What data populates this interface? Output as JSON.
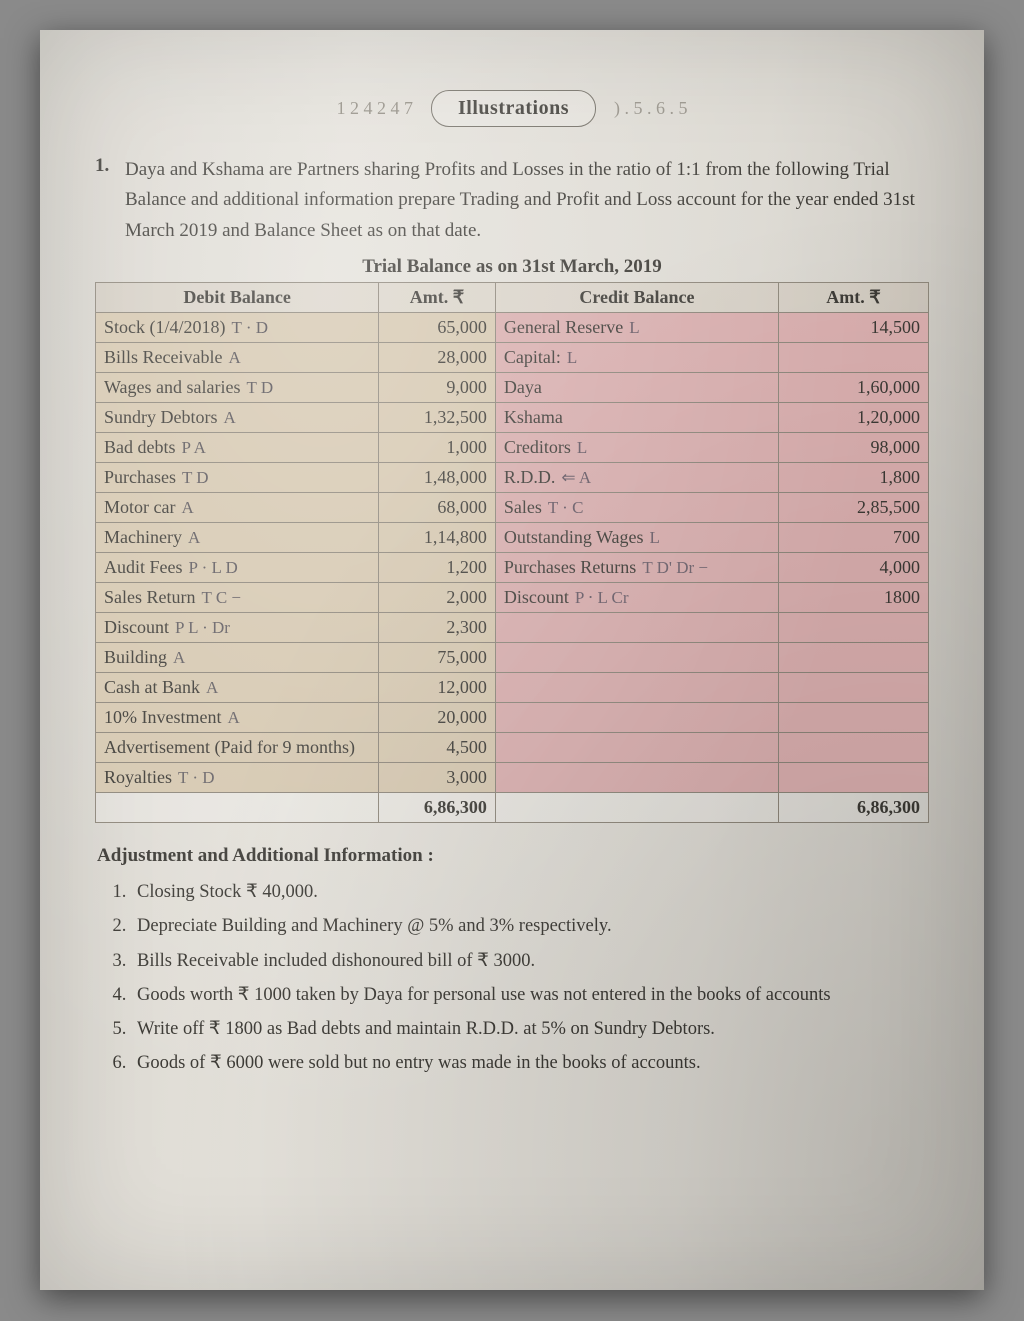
{
  "header": {
    "label": "Illustrations",
    "scribble_left": "1 2 4 2 4 7",
    "scribble_right": ") . 5 . 6 . 5"
  },
  "question": {
    "number": "1.",
    "text": "Daya and Kshama are Partners sharing Profits and Losses in the ratio of 1:1 from the following Trial Balance and additional information prepare Trading and Profit and Loss account for the year ended 31st March 2019 and Balance Sheet as on that date."
  },
  "trial_balance": {
    "title": "Trial Balance as on 31st March, 2019",
    "headers": {
      "debit": "Debit Balance",
      "amt_l": "Amt. ₹",
      "credit": "Credit Balance",
      "amt_r": "Amt. ₹"
    },
    "rows": [
      {
        "d": "Stock (1/4/2018)",
        "dh": "T · D",
        "da": "65,000",
        "c": "General Reserve",
        "ch": "L",
        "ca": "14,500"
      },
      {
        "d": "Bills Receivable",
        "dh": "A",
        "da": "28,000",
        "c": "Capital:",
        "ch": "L",
        "ca": ""
      },
      {
        "d": "Wages and salaries",
        "dh": "T  D",
        "da": "9,000",
        "c": "    Daya",
        "ch": "",
        "ca": "1,60,000"
      },
      {
        "d": "Sundry Debtors",
        "dh": "A",
        "da": "1,32,500",
        "c": "    Kshama",
        "ch": "",
        "ca": "1,20,000"
      },
      {
        "d": "Bad debts",
        "dh": "P  A",
        "da": "1,000",
        "c": "Creditors",
        "ch": "L",
        "ca": "98,000"
      },
      {
        "d": "Purchases",
        "dh": "T  D",
        "da": "1,48,000",
        "c": "R.D.D.",
        "ch": "⇐ A",
        "ca": "1,800"
      },
      {
        "d": "Motor car",
        "dh": "A",
        "da": "68,000",
        "c": "Sales",
        "ch": "T · C",
        "ca": "2,85,500"
      },
      {
        "d": "Machinery",
        "dh": "A",
        "da": "1,14,800",
        "c": "Outstanding Wages",
        "ch": "L",
        "ca": "700"
      },
      {
        "d": "Audit Fees",
        "dh": "P · L  D",
        "da": "1,200",
        "c": "Purchases Returns",
        "ch": "T  D' Dr −",
        "ca": "4,000"
      },
      {
        "d": "Sales Return",
        "dh": "T  C  −",
        "da": "2,000",
        "c": "Discount",
        "ch": "P ⋅ L  Cr",
        "ca": "1800"
      },
      {
        "d": "Discount",
        "dh": "P L · Dr",
        "da": "2,300",
        "c": "",
        "ch": "",
        "ca": ""
      },
      {
        "d": "Building",
        "dh": "A",
        "da": "75,000",
        "c": "",
        "ch": "",
        "ca": ""
      },
      {
        "d": "Cash at Bank",
        "dh": "A",
        "da": "12,000",
        "c": "",
        "ch": "",
        "ca": ""
      },
      {
        "d": "10% Investment",
        "dh": "A",
        "da": "20,000",
        "c": "",
        "ch": "",
        "ca": ""
      },
      {
        "d": "Advertisement (Paid for 9 months)",
        "dh": "",
        "da": "4,500",
        "c": "",
        "ch": "",
        "ca": ""
      },
      {
        "d": "Royalties",
        "dh": "T · D",
        "da": "3,000",
        "c": "",
        "ch": "",
        "ca": ""
      }
    ],
    "total_left": "6,86,300",
    "total_right": "6,86,300"
  },
  "adjustments": {
    "title": "Adjustment and Additional Information :",
    "items": [
      "Closing Stock ₹ 40,000.",
      "Depreciate Building and Machinery @ 5% and 3% respectively.",
      "Bills Receivable included dishonoured bill of ₹ 3000.",
      "Goods worth ₹ 1000 taken by Daya for personal use was not entered in the books of accounts",
      "Write off ₹ 1800 as Bad debts and maintain R.D.D. at 5% on Sundry Debtors.",
      "Goods of ₹ 6000 were sold but no entry was made in the books of accounts."
    ]
  },
  "colors": {
    "page_bg": "#e0ddd6",
    "debit_bg": "#d5c7af",
    "credit_bg": "#d8adad",
    "border": "#8c8579",
    "text": "#3b3934"
  }
}
